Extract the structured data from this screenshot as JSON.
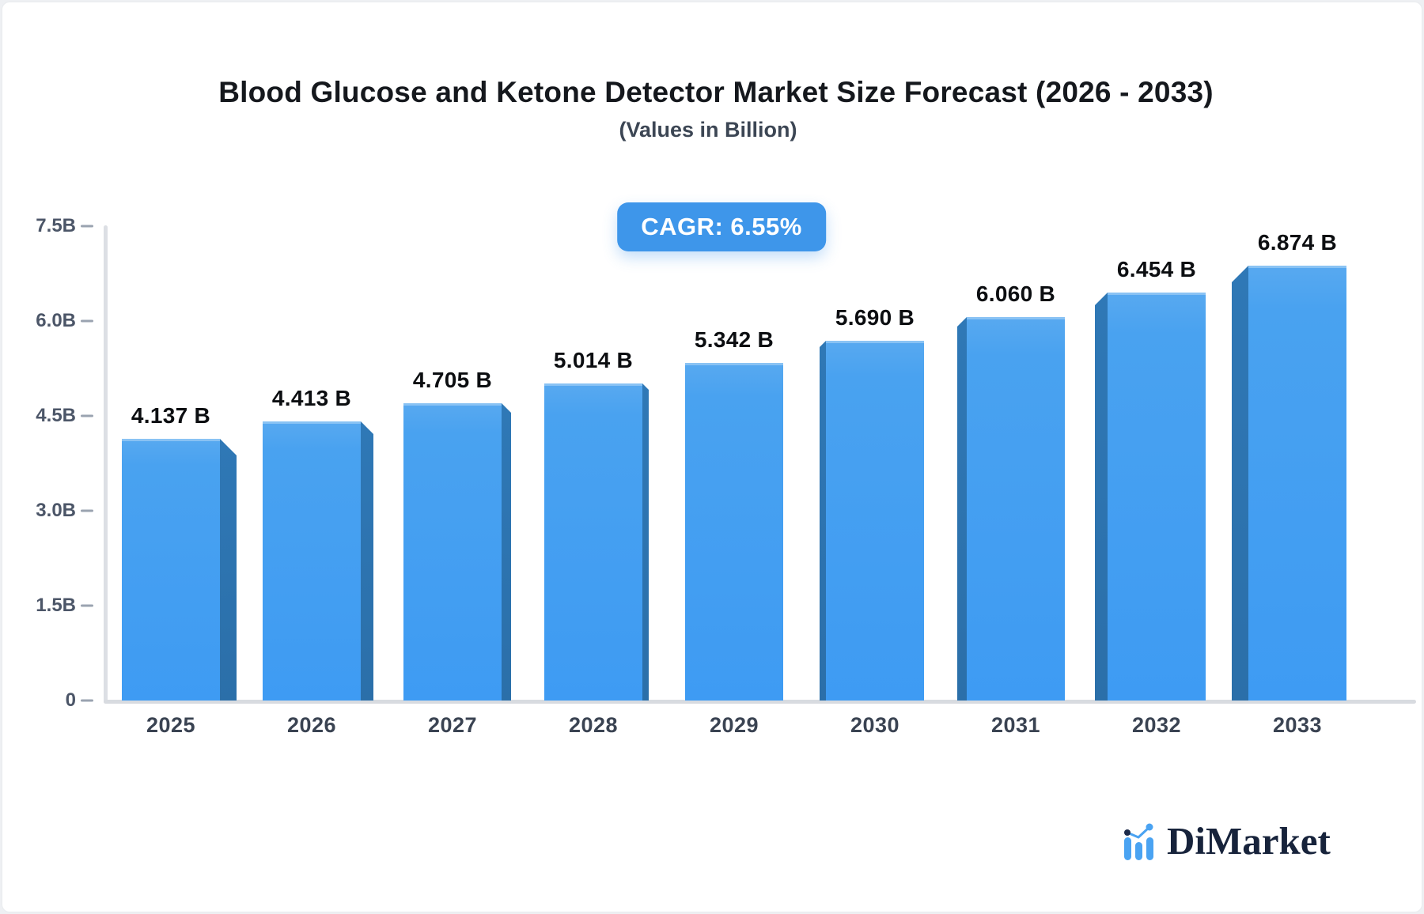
{
  "title": "Blood Glucose and Ketone Detector Market Size Forecast (2026 - 2033)",
  "subtitle": "(Values in Billion)",
  "badge": {
    "label": "CAGR: 6.55%"
  },
  "brand": {
    "name": "DiMarket"
  },
  "chart_data": {
    "type": "bar",
    "title": "Blood Glucose and Ketone Detector Market Size Forecast (2026 - 2033)",
    "subtitle": "(Values in Billion)",
    "cagr": "6.55%",
    "categories": [
      "2025",
      "2026",
      "2027",
      "2028",
      "2029",
      "2030",
      "2031",
      "2032",
      "2033"
    ],
    "values": [
      4.137,
      4.413,
      4.705,
      5.014,
      5.342,
      5.69,
      6.06,
      6.454,
      6.874
    ],
    "value_suffix": " B",
    "xlabel": "",
    "ylabel": "",
    "ylim": [
      0,
      7.5
    ],
    "yticks": {
      "values": [
        0,
        1.5,
        3.0,
        4.5,
        6.0,
        7.5
      ],
      "labels": [
        "0",
        "1.5B",
        "3.0B",
        "4.5B",
        "6.0B",
        "7.5B"
      ]
    },
    "grid": false,
    "legend": false
  },
  "colors": {
    "badge_bg": "#3e96ea",
    "bar_face_top": "#58a9f0",
    "bar_face_bottom": "#3e9bf3",
    "bar_side": "#2d74b2",
    "axis": "#d8dbe0",
    "tick_text": "#4c5668",
    "year_text": "#3a4352",
    "value_text": "#0c0e11",
    "brand_text": "#17233b",
    "brand_icon": "#4aa3f2"
  }
}
